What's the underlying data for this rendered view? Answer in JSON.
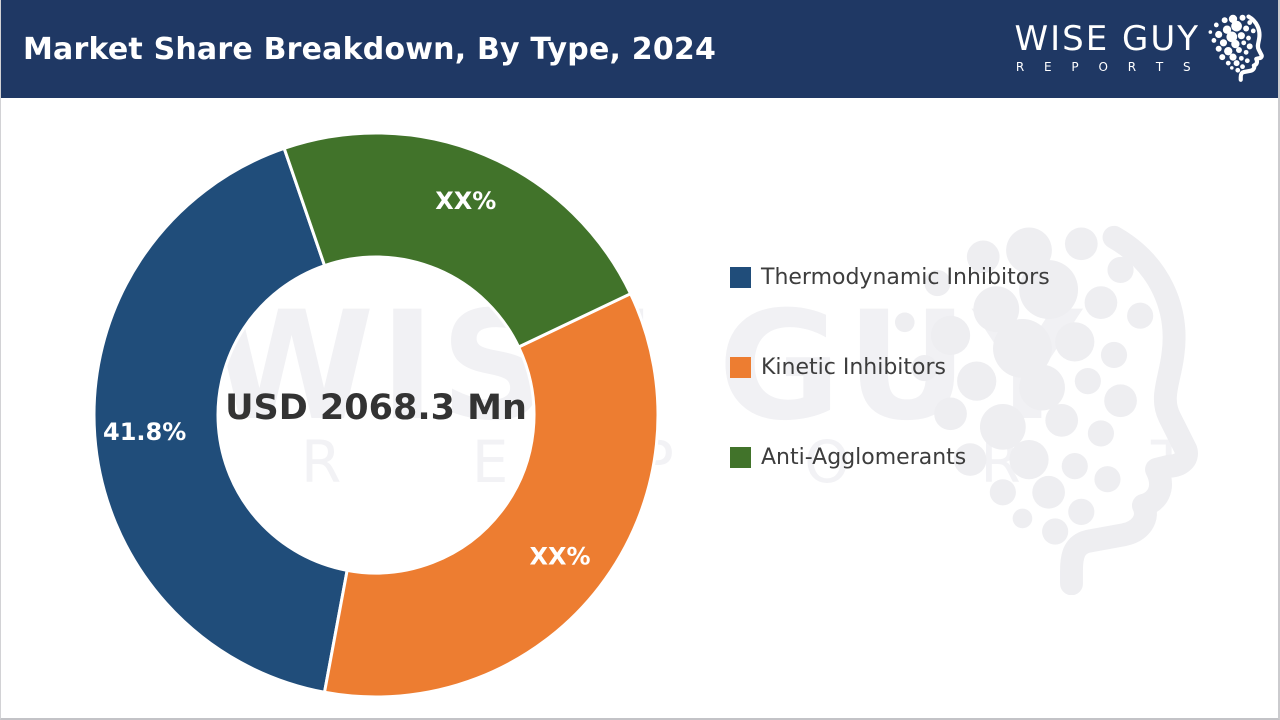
{
  "header": {
    "title": "Market Share Breakdown, By Type, 2024",
    "logo": {
      "line1": "WISE GUY",
      "line2": "R E P O R T S"
    }
  },
  "watermark": {
    "line1": "WISE GUY",
    "line2": "R E P O R T S"
  },
  "chart_data": {
    "type": "donut",
    "title": "Market Share Breakdown, By Type, 2024",
    "center_label": "USD 2068.3 Mn",
    "start_angle_deg": 109,
    "direction": "counterclockwise",
    "legend_position": "right",
    "series": [
      {
        "name": "Thermodynamic Inhibitors",
        "value_pct": 41.8,
        "display_label": "41.8%",
        "color": "#204D7A"
      },
      {
        "name": "Kinetic Inhibitors",
        "value_pct": 35.0,
        "display_label": "XX%",
        "color": "#ED7D31"
      },
      {
        "name": "Anti-Agglomerants",
        "value_pct": 23.2,
        "display_label": "XX%",
        "color": "#41732A"
      }
    ]
  },
  "colors": {
    "header_bg": "#1F3864",
    "page_bg": "#FFFFFF",
    "center_text": "#333333",
    "legend_text": "#3D3D3D",
    "watermark": "#F1F1F4",
    "slice_label_text": "#FFFFFF"
  }
}
